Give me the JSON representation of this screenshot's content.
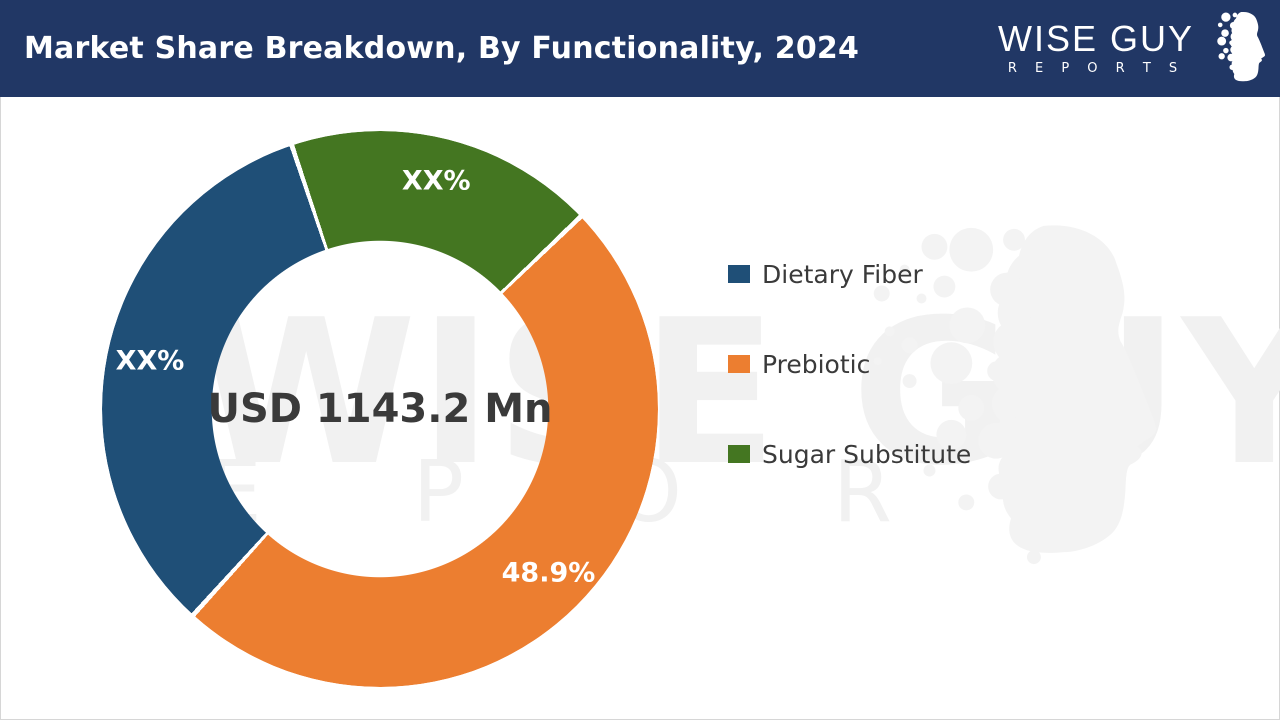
{
  "header": {
    "title": "Market Share Breakdown, By Functionality, 2024",
    "logo": {
      "word": "WISE GUY",
      "sub": "R E P O R T S"
    }
  },
  "watermark": {
    "line1": "WISE GUY",
    "line2": "E P O R T"
  },
  "chart_data": {
    "type": "pie",
    "subtype": "donut",
    "title": "Market Share Breakdown, By Functionality, 2024",
    "center_label": "USD 1143.2 Mn",
    "legend_position": "right",
    "segments": [
      {
        "label": "Dietary Fiber",
        "display_value": "XX%",
        "est_pct": 33.1,
        "start_deg": 222.2,
        "sweep_deg": 119.3,
        "color": "#1F4F77"
      },
      {
        "label": "Prebiotic",
        "display_value": "48.9%",
        "est_pct": 48.9,
        "start_deg": 46.2,
        "sweep_deg": 176.0,
        "color": "#EC7E30"
      },
      {
        "label": "Sugar Substitute",
        "display_value": "XX%",
        "est_pct": 18.0,
        "start_deg": 341.5,
        "sweep_deg": 64.7,
        "color": "#447621"
      }
    ],
    "colors": {
      "header": "#213765",
      "center_text": "#3a3a3a",
      "watermark": "#f1f1f1"
    }
  }
}
